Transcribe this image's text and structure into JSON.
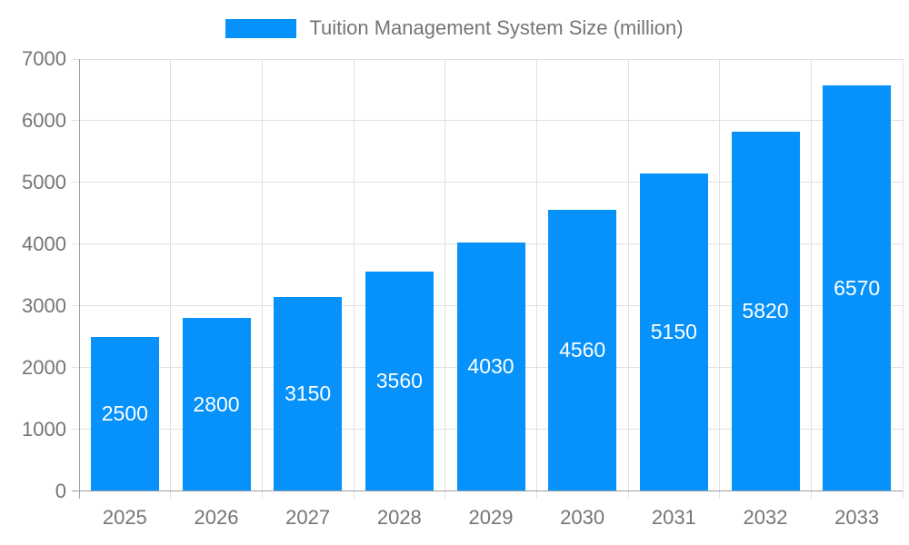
{
  "chart_data": {
    "type": "bar",
    "title": "Tuition Management System Size (million)",
    "categories": [
      "2025",
      "2026",
      "2027",
      "2028",
      "2029",
      "2030",
      "2031",
      "2032",
      "2033"
    ],
    "series": [
      {
        "name": "Tuition Management System Size (million)",
        "values": [
          2500,
          2800,
          3150,
          3560,
          4030,
          4560,
          5150,
          5820,
          6570
        ]
      }
    ],
    "value_labels": [
      "2500",
      "2800",
      "3150",
      "3560",
      "4030",
      "4560",
      "5150",
      "5820",
      "6570"
    ],
    "xlabel": "",
    "ylabel": "",
    "ylim": [
      0,
      7000
    ],
    "ytick_step": 1000,
    "yticks": [
      "0",
      "1000",
      "2000",
      "3000",
      "4000",
      "5000",
      "6000",
      "7000"
    ],
    "grid": true,
    "legend_position": "top-center",
    "colors": {
      "bar": "#0691fb",
      "value_label": "#ffffff",
      "axis_label": "#757575",
      "title": "#757575",
      "gridline": "#e0e0e0",
      "axis_line": "#9e9e9e",
      "background": "#ffffff"
    }
  }
}
